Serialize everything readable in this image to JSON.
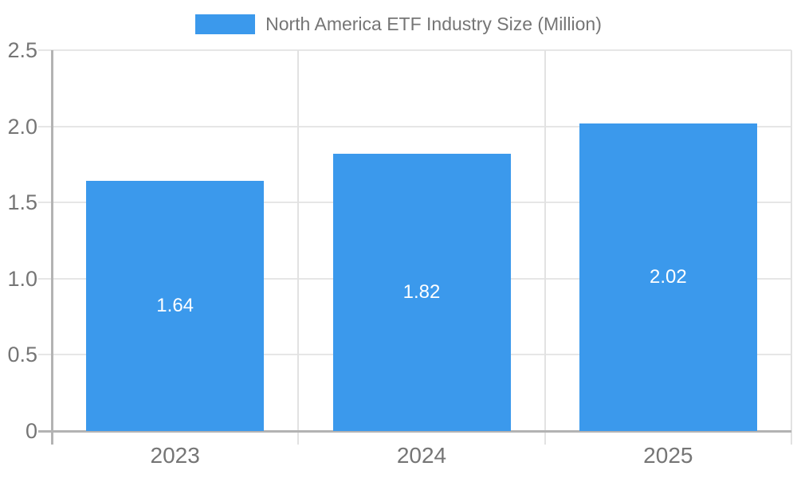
{
  "legend": {
    "label": "North America ETF Industry Size (Million)"
  },
  "chart_data": {
    "type": "bar",
    "title": "",
    "legend_entries": [
      "North America ETF Industry Size (Million)"
    ],
    "legend_position": "top-center",
    "categories": [
      "2023",
      "2024",
      "2025"
    ],
    "values": [
      1.64,
      1.82,
      2.02
    ],
    "value_labels": [
      "1.64",
      "1.82",
      "2.02"
    ],
    "ylim": [
      0,
      2.5
    ],
    "yticks": [
      0,
      0.5,
      1,
      1.5,
      2,
      2.5
    ],
    "ytick_labels": [
      "0",
      "0.5",
      "1.0",
      "1.5",
      "2.0",
      "2.5"
    ],
    "grid": true
  },
  "colors": {
    "bar": "#3B99EC",
    "axis": "#b3b3b3",
    "gridline": "#e6e6e6",
    "label_text": "#757575",
    "value_text": "#ffffff",
    "background": "#ffffff"
  }
}
